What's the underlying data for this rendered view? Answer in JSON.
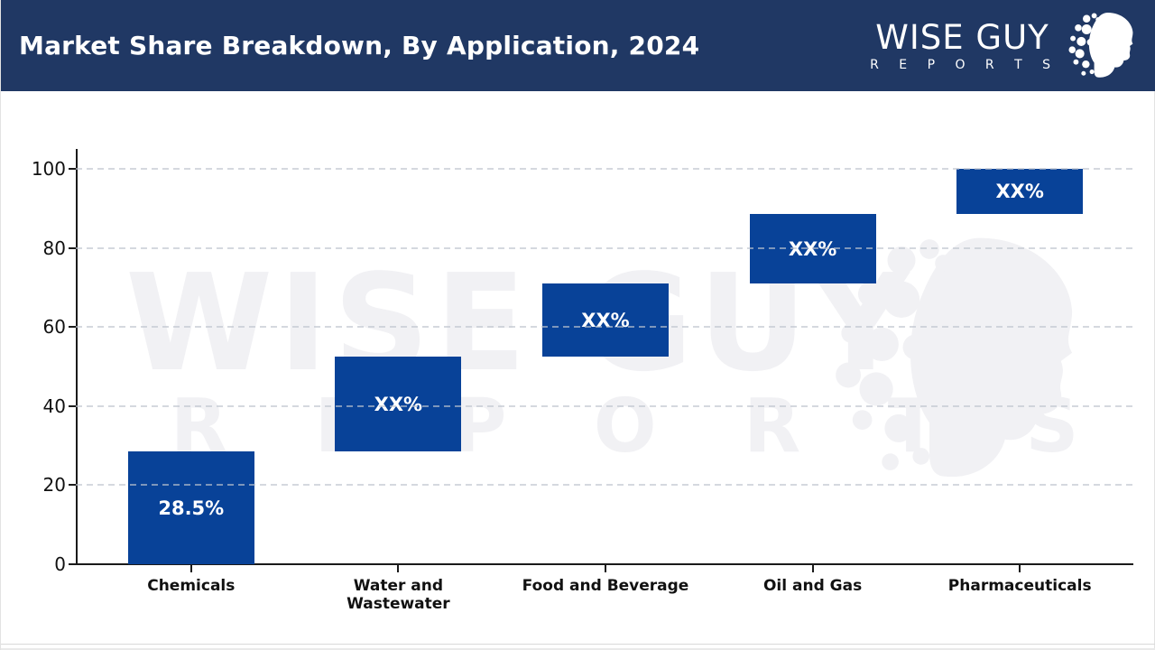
{
  "header": {
    "title": "Market Share Breakdown, By Application, 2024",
    "bg_color": "#203864",
    "text_color": "#ffffff",
    "logo": {
      "line1": "WISE GUY",
      "line2": "R E P O R T S"
    }
  },
  "watermark": {
    "line1": "WISE GUY",
    "line2": "R E P O R T S"
  },
  "chart_data": {
    "type": "bar",
    "subtype": "waterfall",
    "title": "Market Share Breakdown, By Application, 2024",
    "categories": [
      "Chemicals",
      "Water and\nWastewater",
      "Food and Beverage",
      "Oil and Gas",
      "Pharmaceuticals"
    ],
    "segments": [
      {
        "category": "Chemicals",
        "start": 0,
        "end": 28.5,
        "label": "28.5%"
      },
      {
        "category": "Water and Wastewater",
        "start": 28.5,
        "end": 52.5,
        "label": "XX%"
      },
      {
        "category": "Food and Beverage",
        "start": 52.5,
        "end": 71,
        "label": "XX%"
      },
      {
        "category": "Oil and Gas",
        "start": 71,
        "end": 88.5,
        "label": "XX%"
      },
      {
        "category": "Pharmaceuticals",
        "start": 88.5,
        "end": 100,
        "label": "XX%"
      }
    ],
    "xlabel": "",
    "ylabel": "",
    "ylim": [
      0,
      105
    ],
    "yticks": [
      0,
      20,
      40,
      60,
      80,
      100
    ],
    "grid": true,
    "grid_style": "dashed",
    "legend": "none",
    "bar_color": "#084298",
    "bar_label_color": "#ffffff"
  }
}
